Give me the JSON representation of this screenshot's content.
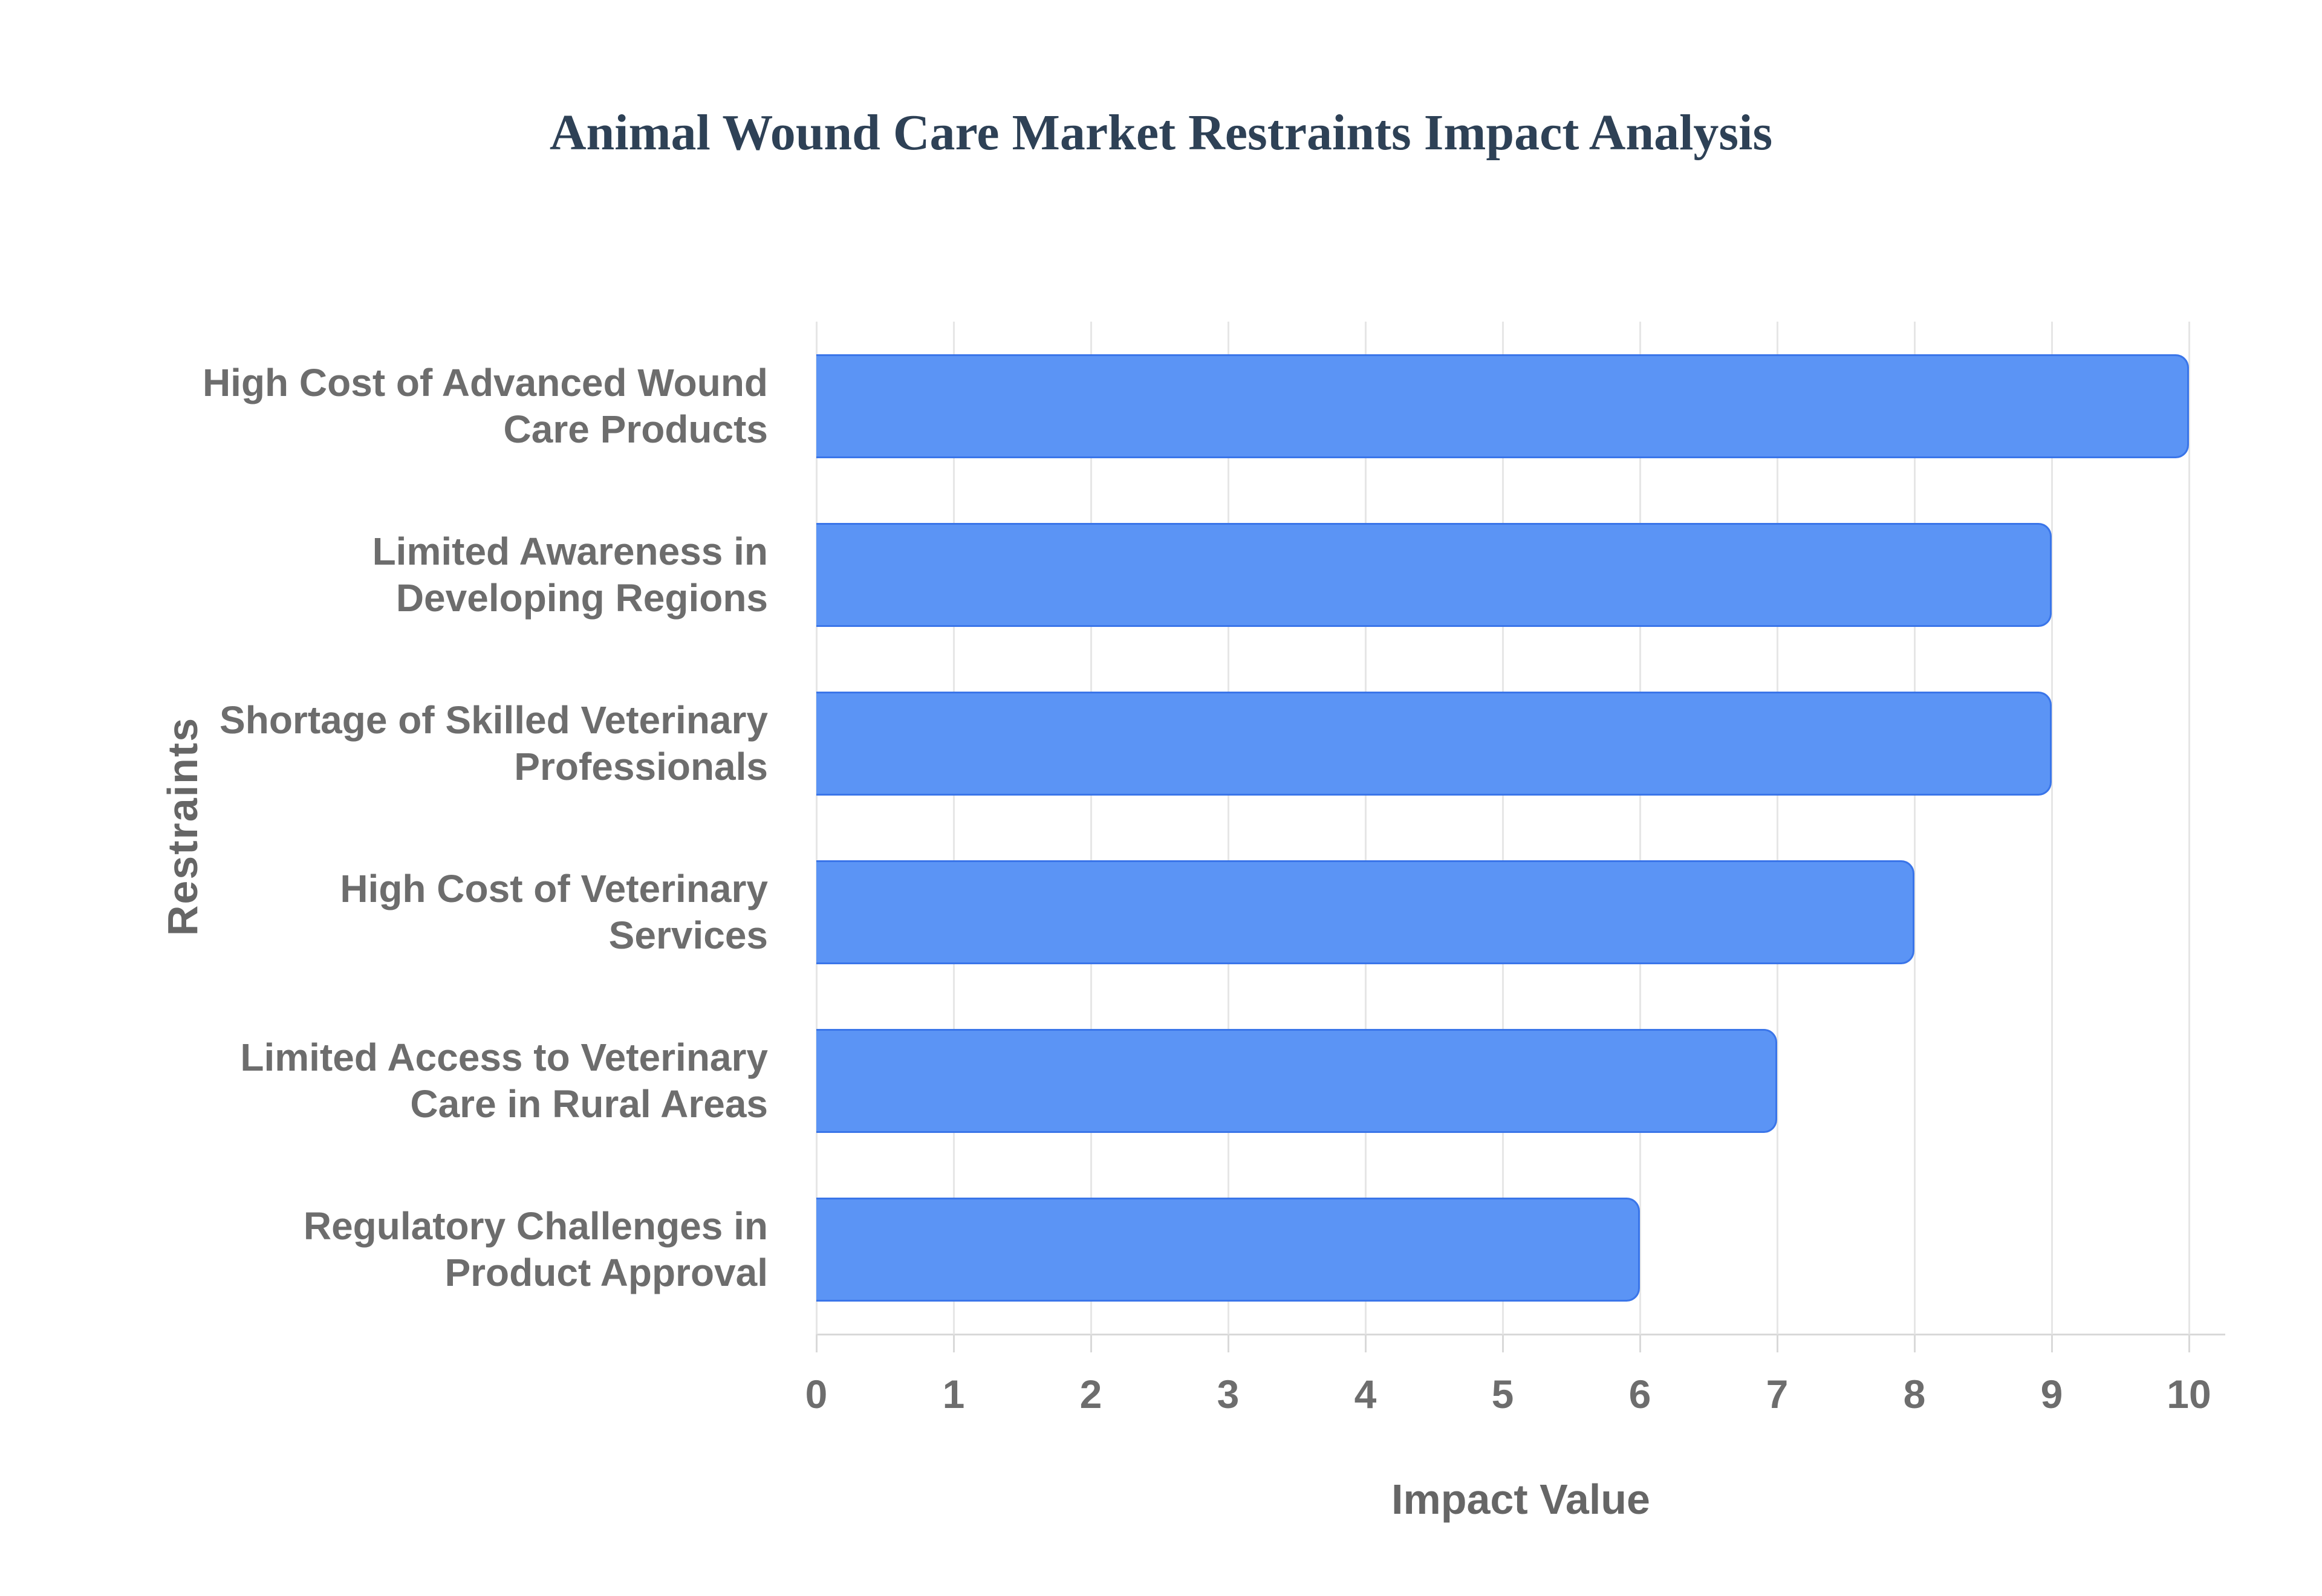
{
  "title": "Animal Wound Care Market Restraints Impact Analysis",
  "chart_data": {
    "type": "bar",
    "orientation": "horizontal",
    "title": "Animal Wound Care Market Restraints Impact Analysis",
    "categories": [
      "High Cost of Advanced Wound Care Products",
      "Limited Awareness in Developing Regions",
      "Shortage of Skilled Veterinary Professionals",
      "High Cost of Veterinary Services",
      "Limited Access to Veterinary Care in Rural Areas",
      "Regulatory Challenges in Product Approval"
    ],
    "category_lines": [
      [
        "High Cost of Advanced Wound",
        "Care Products"
      ],
      [
        "Limited Awareness in",
        "Developing Regions"
      ],
      [
        "Shortage of Skilled Veterinary",
        "Professionals"
      ],
      [
        "High Cost of Veterinary",
        "Services"
      ],
      [
        "Limited Access to Veterinary",
        "Care in Rural Areas"
      ],
      [
        "Regulatory Challenges in",
        "Product Approval"
      ]
    ],
    "values": [
      10,
      9,
      9,
      8,
      7,
      6
    ],
    "xlabel": "Impact Value",
    "ylabel": "Restraints",
    "xlim": [
      0,
      10
    ],
    "xticks": [
      0,
      1,
      2,
      3,
      4,
      5,
      6,
      7,
      8,
      9,
      10
    ],
    "grid": true,
    "legend": false,
    "colors": {
      "bar_fill": "#5b94f5",
      "bar_border": "#3a75e9",
      "title_text": "#2e4156",
      "label_text": "#6d6d6d",
      "axis_title_text": "#666666",
      "gridline": "#e6e6e6",
      "axis_line": "#d9d9d9",
      "background": "#ffffff"
    }
  }
}
